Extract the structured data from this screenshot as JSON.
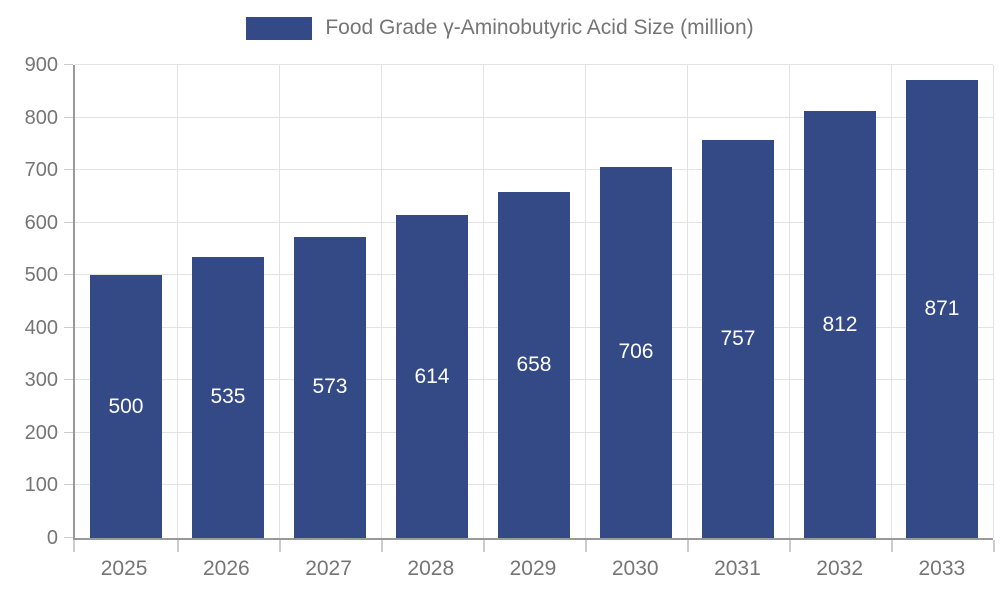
{
  "chart_data": {
    "type": "bar",
    "title": "Food Grade γ-Aminobutyric Acid Size (million)",
    "categories": [
      "2025",
      "2026",
      "2027",
      "2028",
      "2029",
      "2030",
      "2031",
      "2032",
      "2033"
    ],
    "values": [
      500,
      535,
      573,
      614,
      658,
      706,
      757,
      812,
      871
    ],
    "xlabel": "",
    "ylabel": "",
    "ylim": [
      0,
      900
    ],
    "yticks": [
      0,
      100,
      200,
      300,
      400,
      500,
      600,
      700,
      800,
      900
    ],
    "grid": true,
    "legend_position": "top",
    "colors": {
      "bar": "#344A87",
      "value_label": "#FFFFFF",
      "axis_text": "#757575",
      "gridline": "#E3E3E3",
      "axis_line": "#999999",
      "tick": "#CCCCCC",
      "background": "#FFFFFF"
    }
  }
}
